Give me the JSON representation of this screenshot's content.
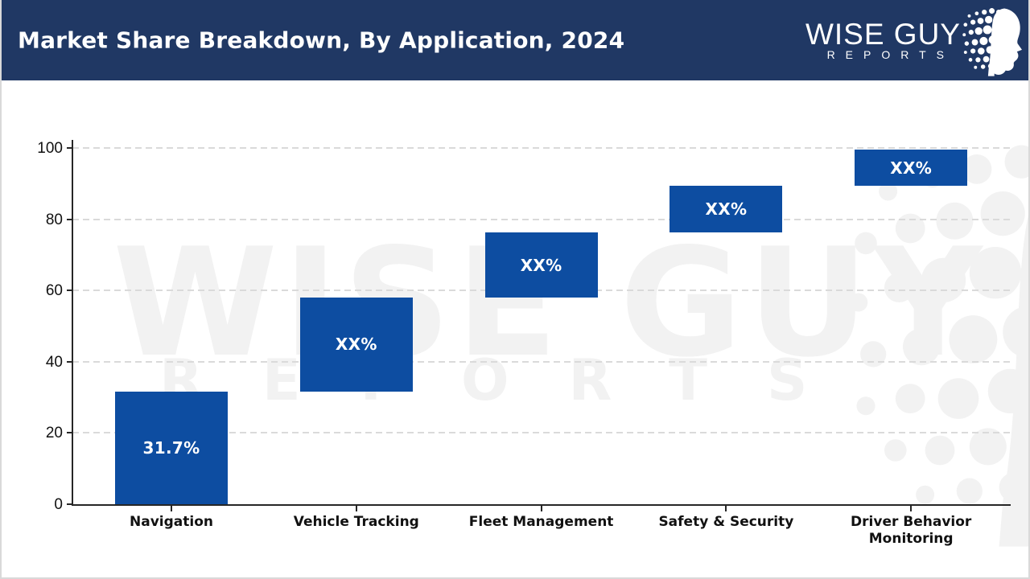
{
  "header": {
    "title": "Market Share Breakdown, By Application, 2024",
    "background_color": "#203864",
    "brand": {
      "line1": "WISE GUY",
      "line2": "REPORTS",
      "head_icon": "dotted-head-profile"
    }
  },
  "watermark": {
    "line1": "WISE GUY",
    "line2": "REPORTS"
  },
  "chart_data": {
    "type": "bar",
    "subtype": "waterfall",
    "title": "Market Share Breakdown, By Application, 2024",
    "xlabel": "",
    "ylabel": "",
    "ylim": [
      0,
      100
    ],
    "yticks": [
      0,
      20,
      40,
      60,
      80,
      100
    ],
    "grid": "horizontal-dashed",
    "legend": "none",
    "bar_color": "#0d4da1",
    "bar_label_color": "#ffffff",
    "axis_color": "#262626",
    "gridline_color": "#dadada",
    "categories": [
      "Navigation",
      "Vehicle Tracking",
      "Fleet Management",
      "Safety & Security",
      "Driver Behavior Monitoring"
    ],
    "segments": [
      {
        "category": "Navigation",
        "start": 0,
        "end": 31.7,
        "label": "31.7%"
      },
      {
        "category": "Vehicle Tracking",
        "start": 31.7,
        "end": 58,
        "label": "XX%"
      },
      {
        "category": "Fleet Management",
        "start": 58,
        "end": 76.2,
        "label": "XX%"
      },
      {
        "category": "Safety & Security",
        "start": 76.2,
        "end": 89.4,
        "label": "XX%"
      },
      {
        "category": "Driver Behavior Monitoring",
        "start": 89.4,
        "end": 99.5,
        "label": "XX%"
      }
    ]
  }
}
